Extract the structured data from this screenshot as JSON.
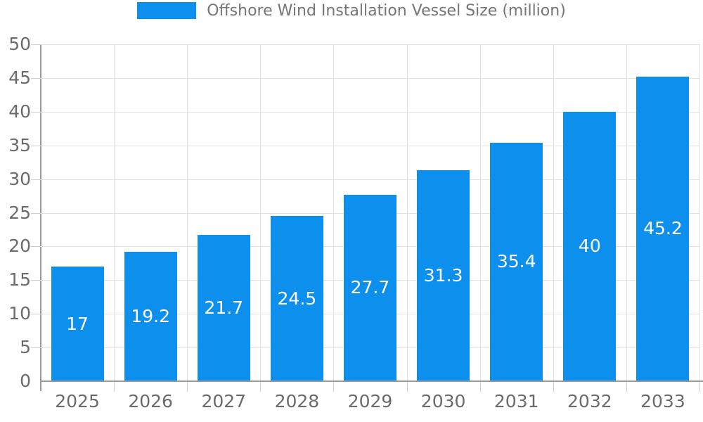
{
  "chart_data": {
    "type": "bar",
    "title": "Offshore Wind Installation Vessel Size (million)",
    "legend": {
      "label": "Offshore Wind Installation Vessel Size (million)",
      "position": "top-center"
    },
    "categories": [
      "2025",
      "2026",
      "2027",
      "2028",
      "2029",
      "2030",
      "2031",
      "2032",
      "2033"
    ],
    "values": [
      17,
      19.2,
      21.7,
      24.5,
      27.7,
      31.3,
      35.4,
      40,
      45.2
    ],
    "value_labels": [
      "17",
      "19.2",
      "21.7",
      "24.5",
      "27.7",
      "31.3",
      "35.4",
      "40",
      "45.2"
    ],
    "value_label_position": "inside-center",
    "xlabel": "",
    "ylabel": "",
    "ylim": [
      0,
      50
    ],
    "y_ticks": [
      0,
      5,
      10,
      15,
      20,
      25,
      30,
      35,
      40,
      45,
      50
    ],
    "grid": "horizontal-and-vertical",
    "colors": {
      "bar": "#0D8FEE",
      "grid": "#E2E2E2",
      "axis": "#999999",
      "tick": "#CFCFCF",
      "tick_label": "#6B6B6B",
      "legend_text": "#757575",
      "value_label": "#FFFFFF",
      "background": "#FFFFFF"
    }
  }
}
